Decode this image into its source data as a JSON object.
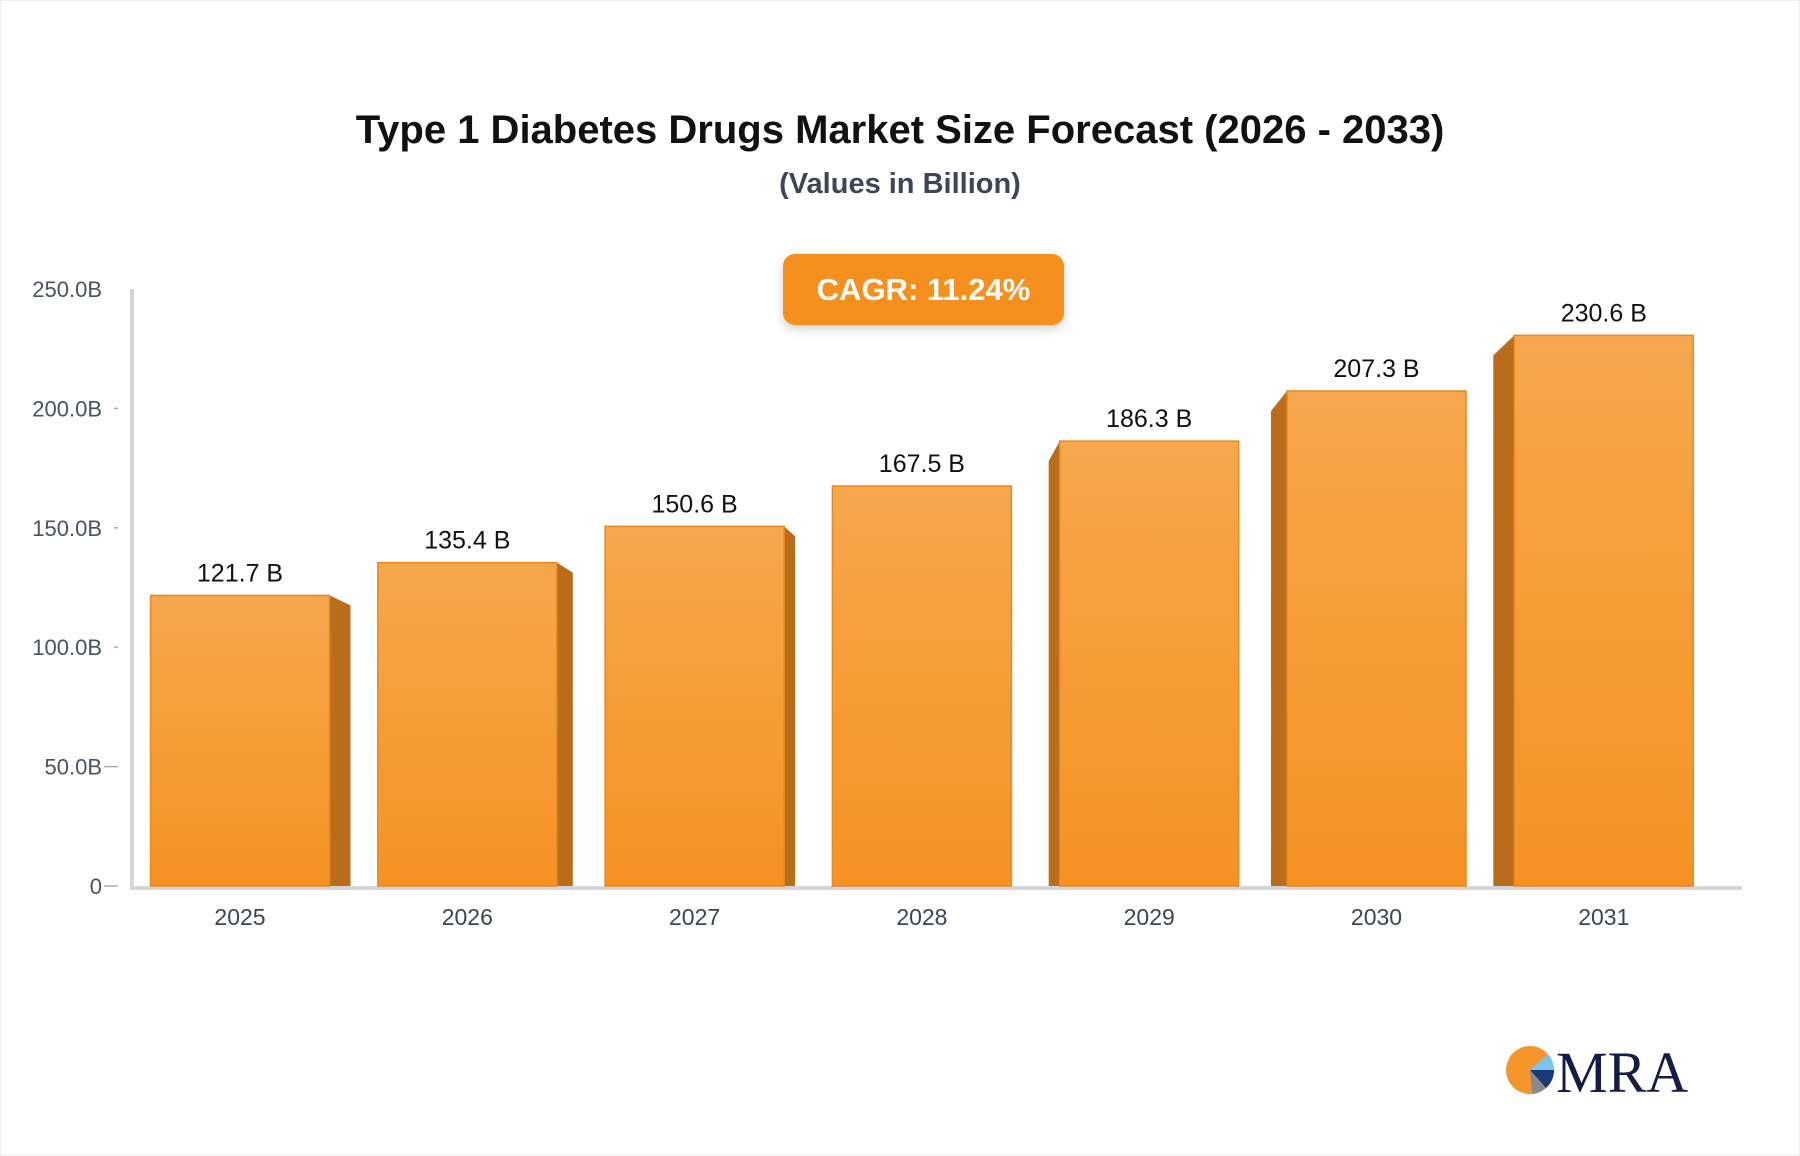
{
  "chart_data": {
    "type": "bar",
    "title": "Type 1 Diabetes Drugs Market Size Forecast (2026 - 2033)",
    "subtitle": "(Values in Billion)",
    "annotation": "CAGR: 11.24%",
    "categories": [
      "2025",
      "2026",
      "2027",
      "2028",
      "2029",
      "2030",
      "2031"
    ],
    "values": [
      121.7,
      135.4,
      150.6,
      167.5,
      186.3,
      207.3,
      230.6
    ],
    "data_labels": [
      "121.7 B",
      "135.4 B",
      "150.6 B",
      "167.5 B",
      "186.3 B",
      "207.3 B",
      "230.6 B"
    ],
    "ylim": [
      0,
      250
    ],
    "yticks": [
      0,
      50,
      100,
      150,
      200,
      250
    ],
    "ytick_labels": [
      "0",
      "50.0B",
      "100.0B",
      "150.0B",
      "200.0B",
      "250.0B"
    ],
    "xlabel": "",
    "ylabel": "",
    "grid": false,
    "legend": "none",
    "colors": {
      "bar": "#f5962a",
      "bar_side": "#b96c19",
      "axis": "#d3d5db",
      "cagr_bg": "#f5901f"
    }
  },
  "logo": {
    "text": "MRA"
  }
}
